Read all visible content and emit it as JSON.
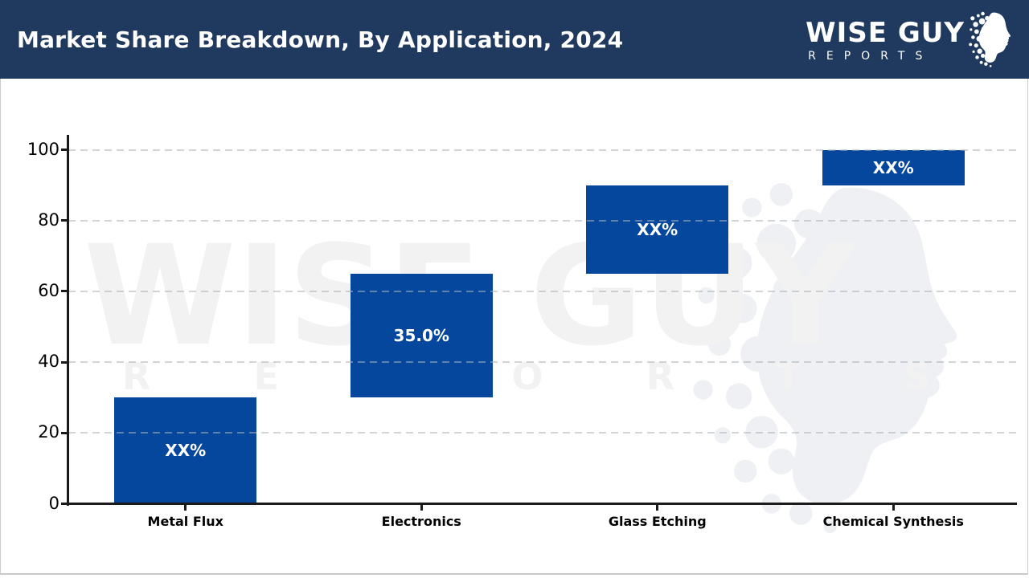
{
  "header": {
    "title": "Market Share Breakdown, By Application, 2024",
    "logo": {
      "line1": "WISE GUY",
      "line2": "REPORTS"
    }
  },
  "watermark": {
    "line1": "WISE GUY",
    "line2": "REPORTS"
  },
  "chart_data": {
    "type": "bar",
    "variant": "waterfall-floating-bars",
    "title": "Market Share Breakdown, By Application, 2024",
    "categories": [
      "Metal Flux",
      "Electronics",
      "Glass Etching",
      "Chemical Synthesis"
    ],
    "series": [
      {
        "name": "Market Share %",
        "segments": [
          {
            "category": "Metal Flux",
            "start": 0,
            "end": 30,
            "label": "XX%"
          },
          {
            "category": "Electronics",
            "start": 30,
            "end": 65,
            "label": "35.0%"
          },
          {
            "category": "Glass Etching",
            "start": 65,
            "end": 90,
            "label": "XX%"
          },
          {
            "category": "Chemical Synthesis",
            "start": 90,
            "end": 100,
            "label": "XX%"
          }
        ]
      }
    ],
    "yticks": [
      0,
      20,
      40,
      60,
      80,
      100
    ],
    "ylim": [
      0,
      104
    ],
    "xlabel": "",
    "ylabel": "",
    "grid": "horizontal-dashed",
    "legend": "none"
  },
  "colors": {
    "header_bg": "#20395f",
    "bar": "#04479c",
    "axis": "#1a1a1a",
    "bar_label_text": "#ffffff",
    "watermark": "#f2f2f2"
  }
}
